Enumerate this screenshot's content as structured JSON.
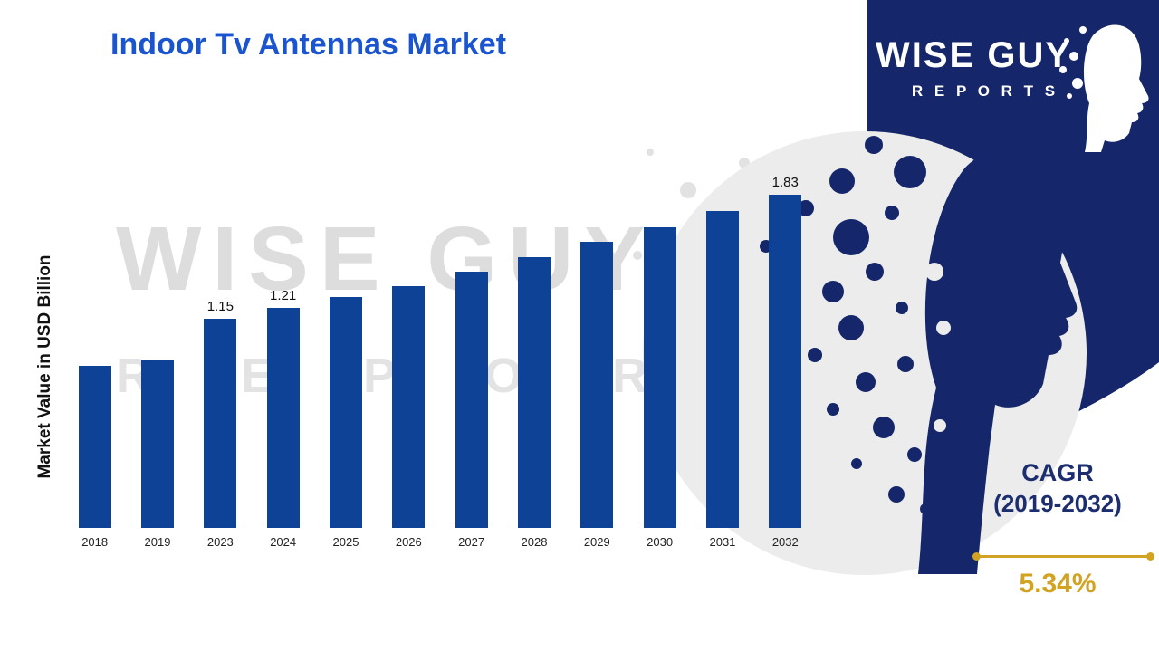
{
  "title": "Indoor Tv Antennas Market",
  "brand": {
    "line1": "WISE GUY",
    "line2": "R E P O R T S"
  },
  "watermark": {
    "line1": "WISE GUY",
    "line2": "R E P O R T S"
  },
  "cagr": {
    "label_line1": "CAGR",
    "label_line2": "(2019-2032)",
    "value": "5.34%"
  },
  "colors": {
    "bar": "#0d4296",
    "navy_panel": "#15276a",
    "gold": "#d2a322",
    "title_blue": "#1a55cf",
    "watermark_gray": "#dddddd",
    "circle_gray": "#ececec"
  },
  "chart_data": {
    "type": "bar",
    "title": "Indoor Tv Antennas Market",
    "xlabel": "",
    "ylabel": "Market Value in USD Billion",
    "unit": "USD Billion",
    "categories": [
      "2018",
      "2019",
      "2023",
      "2024",
      "2025",
      "2026",
      "2027",
      "2028",
      "2029",
      "2030",
      "2031",
      "2032"
    ],
    "values": [
      0.89,
      0.92,
      1.15,
      1.21,
      1.27,
      1.33,
      1.41,
      1.49,
      1.57,
      1.65,
      1.74,
      1.83
    ],
    "value_labels": {
      "2023": "1.15",
      "2024": "1.21",
      "2032": "1.83"
    },
    "ylim": [
      0,
      2
    ],
    "grid": false,
    "legend": false
  }
}
